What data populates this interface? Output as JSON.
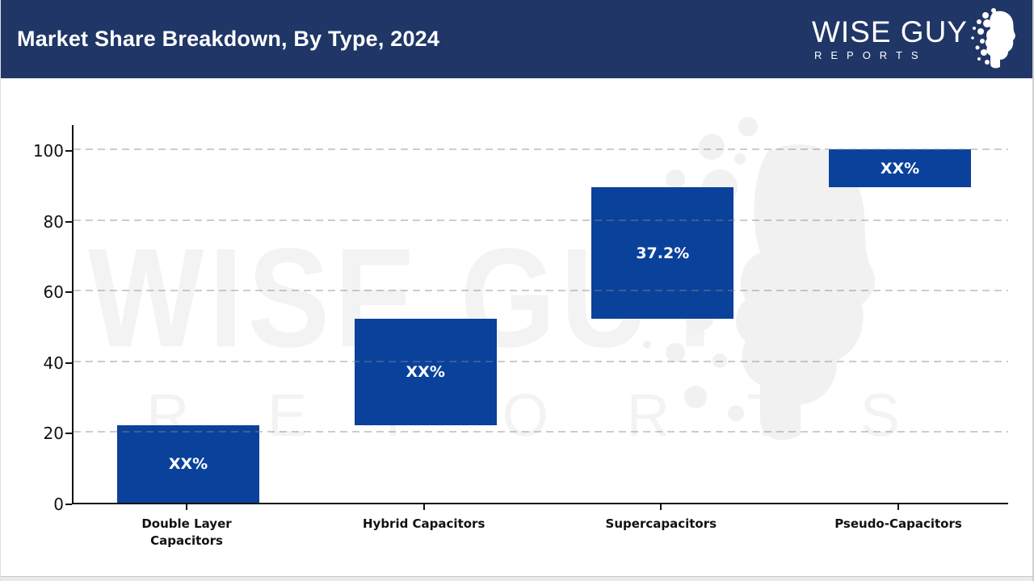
{
  "header": {
    "title": "Market Share Breakdown, By Type, 2024",
    "logo": {
      "line1": "WISE GUY",
      "line2": "REPORTS"
    }
  },
  "watermark": {
    "line1": "WISE GUY",
    "line2": "R E P O R T S"
  },
  "colors": {
    "header_bg": "#1F3666",
    "bar_fill": "#0A419B",
    "bar_label": "#ffffff",
    "gridline": "#d7d7d7",
    "axis": "#111111",
    "watermark": "#f3f3f3"
  },
  "chart_data": {
    "type": "bar",
    "subtype": "floating-segment-waterfall",
    "title": "Market Share Breakdown, By Type, 2024",
    "categories": [
      "Double Layer\nCapacitors",
      "Hybrid Capacitors",
      "Supercapacitors",
      "Pseudo-Capacitors"
    ],
    "bars": [
      {
        "category": "Double Layer Capacitors",
        "start": 0,
        "end": 22,
        "label": "XX%"
      },
      {
        "category": "Hybrid Capacitors",
        "start": 22,
        "end": 52,
        "label": "XX%"
      },
      {
        "category": "Supercapacitors",
        "start": 52,
        "end": 89.2,
        "label": "37.2%"
      },
      {
        "category": "Pseudo-Capacitors",
        "start": 89.2,
        "end": 100,
        "label": "XX%"
      }
    ],
    "yticks": [
      0,
      20,
      40,
      60,
      80,
      100
    ],
    "ylim": [
      0,
      107
    ],
    "xlabel": "",
    "ylabel": "",
    "grid": "horizontal-dashed-over-bars",
    "legend": "none"
  }
}
